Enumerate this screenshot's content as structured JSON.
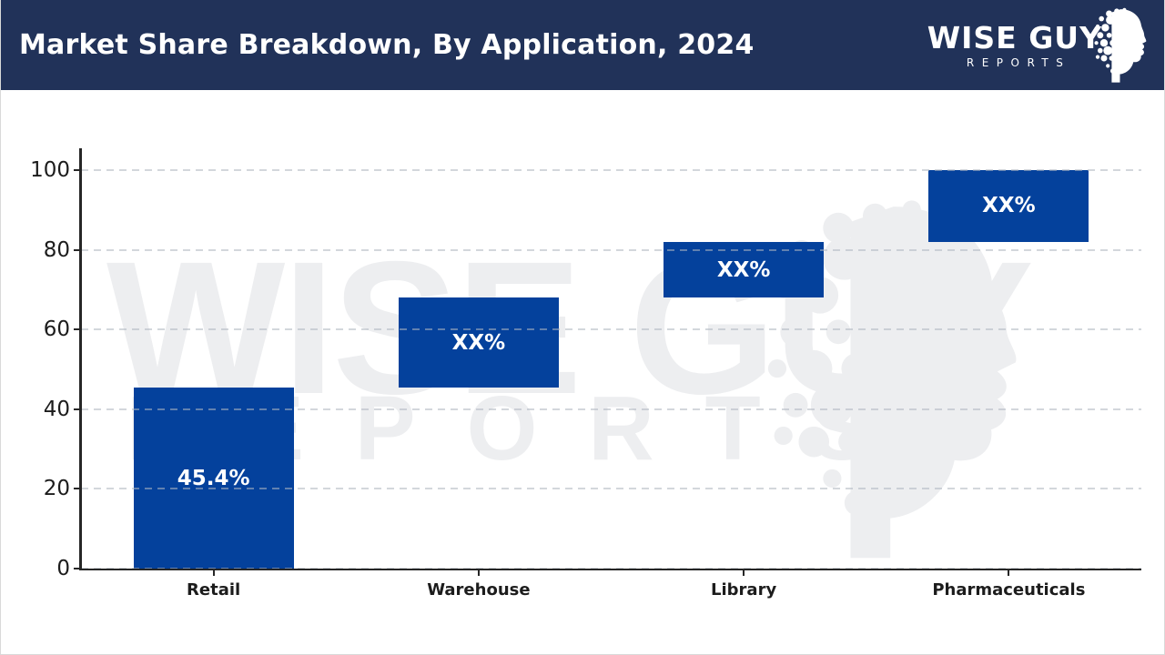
{
  "header": {
    "title": "Market Share Breakdown, By Application, 2024",
    "logo": {
      "line1": "WISE GUY",
      "line2": "REPORTS",
      "icon": "wiseguy-face-icon"
    }
  },
  "watermark": {
    "line1": "WISE GUY",
    "line2": "REPORTS",
    "icon": "watermark-face-icon"
  },
  "chart_data": {
    "type": "bar",
    "subtype": "waterfall",
    "title": "Market Share Breakdown, By Application, 2024",
    "categories": [
      "Retail",
      "Warehouse",
      "Library",
      "Pharmaceuticals"
    ],
    "series": [
      {
        "name": "Market Share %",
        "segments": [
          {
            "category": "Retail",
            "start": 0,
            "end": 45.4,
            "label": "45.4%"
          },
          {
            "category": "Warehouse",
            "start": 45.4,
            "end": 68.0,
            "label": "XX%"
          },
          {
            "category": "Library",
            "start": 68.0,
            "end": 82.0,
            "label": "XX%"
          },
          {
            "category": "Pharmaceuticals",
            "start": 82.0,
            "end": 100,
            "label": "XX%"
          }
        ]
      }
    ],
    "xlabel": "",
    "ylabel": "",
    "ylim": [
      0,
      100
    ],
    "yticks": [
      0,
      20,
      40,
      60,
      80,
      100
    ],
    "grid": "horizontal dashed, drawn over bars",
    "legend": "none"
  },
  "colors": {
    "header_bg": "#213259",
    "header_text": "#ffffff",
    "bar": "#04419c",
    "bar_label": "#ffffff",
    "axis": "#262626",
    "tick_label": "#1c1c1c",
    "grid_rgba": "rgba(175,182,192,0.55)",
    "watermark": "#edeef0",
    "page_border": "#d9d9d9"
  }
}
